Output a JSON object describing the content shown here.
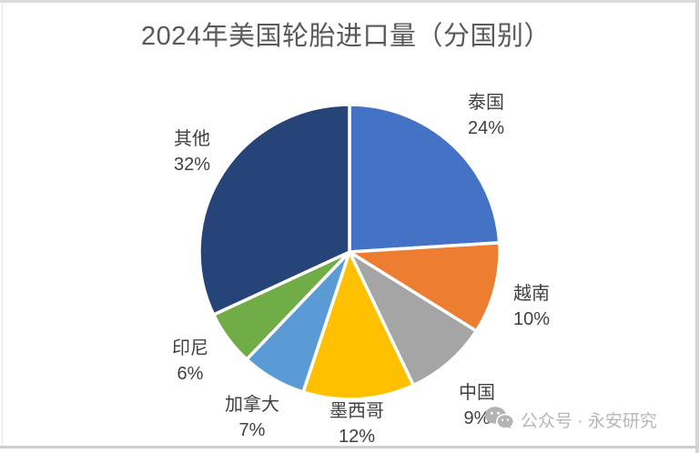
{
  "chart_data": {
    "type": "pie",
    "title": "2024年美国轮胎进口量（分国别）",
    "legend": "none",
    "data_labels": "outside",
    "start_angle_deg": 0,
    "direction": "clockwise",
    "slices": [
      {
        "label": "泰国",
        "value": 24,
        "pct": "24%",
        "color": "#4472C4"
      },
      {
        "label": "越南",
        "value": 10,
        "pct": "10%",
        "color": "#ED7D31"
      },
      {
        "label": "中国",
        "value": 9,
        "pct": "9%",
        "color": "#A5A5A5"
      },
      {
        "label": "墨西哥",
        "value": 12,
        "pct": "12%",
        "color": "#FFC000"
      },
      {
        "label": "加拿大",
        "value": 7,
        "pct": "7%",
        "color": "#5B9BD5"
      },
      {
        "label": "印尼",
        "value": 6,
        "pct": "6%",
        "color": "#70AD47"
      },
      {
        "label": "其他",
        "value": 32,
        "pct": "32%",
        "color": "#264478"
      }
    ],
    "slice_border_color": "#ffffff",
    "title_color": "#595959",
    "label_color": "#404040"
  },
  "watermark": {
    "icon": "wechat-icon",
    "text": "公众号 · 永安研究",
    "color": "#b7b7b7"
  }
}
